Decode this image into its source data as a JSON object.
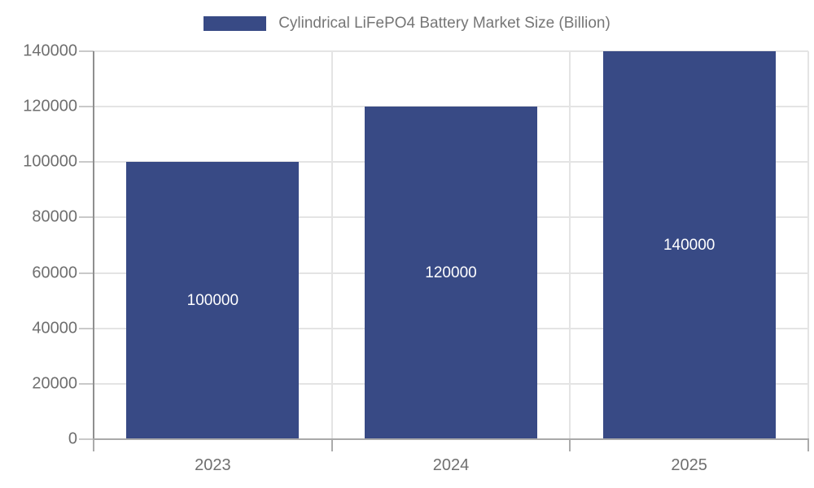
{
  "chart_data": {
    "type": "bar",
    "title": "Cylindrical LiFePO4 Battery Market Size (Billion)",
    "categories": [
      "2023",
      "2024",
      "2025"
    ],
    "series": [
      {
        "name": "Cylindrical LiFePO4 Battery Market Size (Billion)",
        "values": [
          100000,
          120000,
          140000
        ],
        "data_labels": [
          "100000",
          "120000",
          "140000"
        ]
      }
    ],
    "xlabel": "",
    "ylabel": "",
    "ylim": [
      0,
      140000
    ],
    "yticks": [
      0,
      20000,
      40000,
      60000,
      80000,
      100000,
      120000,
      140000
    ],
    "ytick_labels": [
      "0",
      "20000",
      "40000",
      "60000",
      "80000",
      "100000",
      "120000",
      "140000"
    ],
    "grid": true,
    "legend_position": "top-center",
    "colors": {
      "bar": "#384a85",
      "bar_label": "#ffffff",
      "title_text": "#767676",
      "axis_label_text": "#6f6f6f",
      "gridline": "#e4e4e4"
    }
  }
}
